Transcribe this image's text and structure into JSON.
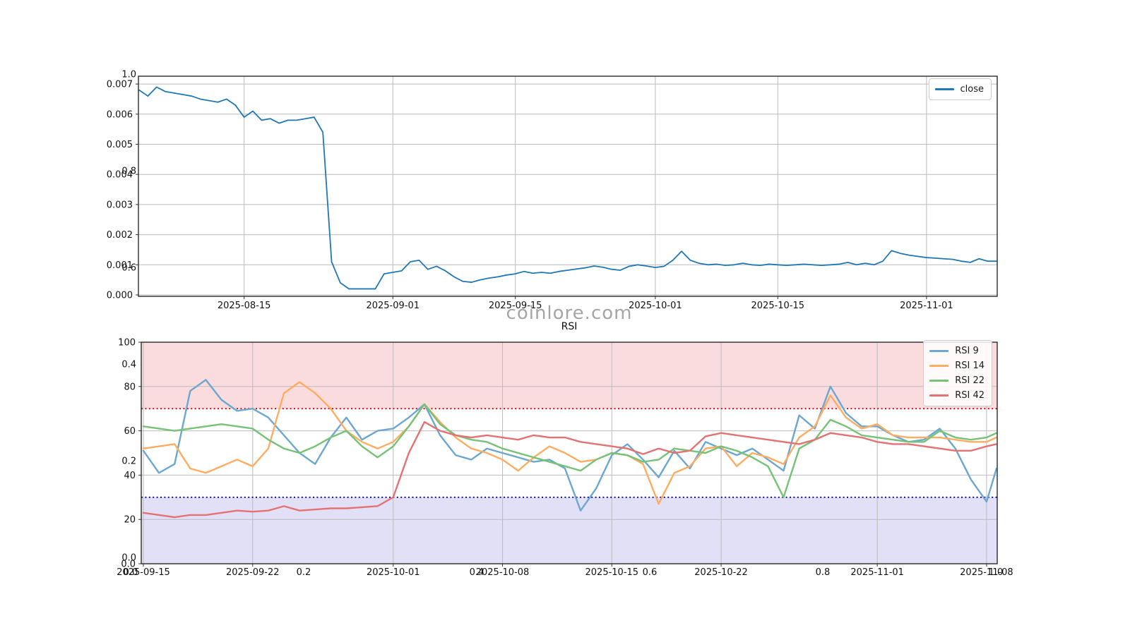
{
  "watermark": "coinlore.com",
  "rsi_title": "RSI",
  "stray_axis_labels": {
    "x": [
      "0.0",
      "0.2",
      "0.4",
      "0.6",
      "0.8",
      "1.0"
    ],
    "y": [
      "1.0",
      "0.8",
      "0.6",
      "0.4",
      "0.2",
      "0.0"
    ]
  },
  "chart_data": [
    {
      "type": "line",
      "name": "price",
      "start_date": "2025-08-03",
      "freq": "daily",
      "ylim": [
        0,
        0.00726
      ],
      "yticklabels": [
        "0.007",
        "0.006",
        "0.005",
        "0.004",
        "0.003",
        "0.002",
        "0.001",
        "0.000"
      ],
      "xticklabels": [
        "2025-08-15",
        "2025-09-01",
        "2025-09-15",
        "2025-10-01",
        "2025-10-15",
        "2025-11-01"
      ],
      "xtick_day_offsets": [
        12,
        29,
        43,
        59,
        73,
        90
      ],
      "grid": true,
      "legend_position": "upper right",
      "series": [
        {
          "name": "close",
          "color": "#1f77b4",
          "values": [
            0.0068,
            0.0066,
            0.0069,
            0.00675,
            0.0067,
            0.00665,
            0.0066,
            0.0065,
            0.00645,
            0.0064,
            0.0065,
            0.0063,
            0.0059,
            0.0061,
            0.0058,
            0.00585,
            0.0057,
            0.0058,
            0.0058,
            0.00585,
            0.0059,
            0.0054,
            0.0011,
            0.0004,
            0.0002,
            0.0002,
            0.0002,
            0.0002,
            0.0007,
            0.00075,
            0.0008,
            0.0011,
            0.00115,
            0.00085,
            0.00095,
            0.0008,
            0.0006,
            0.00045,
            0.00042,
            0.0005,
            0.00056,
            0.0006,
            0.00066,
            0.0007,
            0.00078,
            0.00072,
            0.00075,
            0.00072,
            0.00078,
            0.00082,
            0.00086,
            0.0009,
            0.00096,
            0.00092,
            0.00085,
            0.00082,
            0.00095,
            0.001,
            0.00096,
            0.00091,
            0.00095,
            0.00115,
            0.00145,
            0.00115,
            0.00105,
            0.001,
            0.00102,
            0.00098,
            0.001,
            0.00105,
            0.001,
            0.00098,
            0.00102,
            0.001,
            0.00098,
            0.001,
            0.00102,
            0.001,
            0.00098,
            0.001,
            0.00102,
            0.00108,
            0.001,
            0.00105,
            0.001,
            0.00112,
            0.00147,
            0.00138,
            0.00132,
            0.00128,
            0.00124,
            0.00122,
            0.0012,
            0.00118,
            0.00112,
            0.00108,
            0.0012,
            0.00112,
            0.00112
          ]
        }
      ]
    },
    {
      "type": "line",
      "name": "RSI",
      "start_date": "2025-09-15",
      "freq": "daily",
      "ylim": [
        0,
        100
      ],
      "yticklabels": [
        "100",
        "80",
        "60",
        "40",
        "20",
        "0.0"
      ],
      "ytick_values": [
        100,
        80,
        60,
        40,
        20,
        0
      ],
      "xticklabels": [
        "2025-09-15",
        "2025-09-22",
        "2025-10-01",
        "2025-10-08",
        "2025-10-15",
        "2025-10-22",
        "2025-11-01",
        "2025-11-08"
      ],
      "xtick_day_offsets": [
        0,
        7,
        16,
        23,
        30,
        37,
        47,
        54
      ],
      "grid": true,
      "overbought_level": 70,
      "oversold_level": 30,
      "band_colors": {
        "overbought": "#fbdcde",
        "oversold": "#e2e0f6"
      },
      "dotted_line_colors": {
        "overbought": "#d40000",
        "oversold": "#0000a0"
      },
      "legend_position": "upper right",
      "series": [
        {
          "name": "RSI 9",
          "color": "#6ba7ce",
          "values": [
            51,
            41,
            45,
            78,
            83,
            74,
            69,
            70,
            66,
            58,
            50,
            45,
            57,
            66,
            56,
            60,
            61,
            66,
            72,
            58,
            49,
            47,
            52,
            50,
            48,
            46,
            47,
            43,
            24,
            34,
            49,
            54,
            47,
            39,
            51,
            43,
            55,
            52,
            49,
            52,
            47,
            42,
            67,
            61,
            80,
            68,
            62,
            62,
            58,
            55,
            56,
            61,
            52,
            38,
            28,
            43
          ]
        },
        {
          "name": "RSI 14",
          "color": "#ffac62",
          "values": [
            52,
            53,
            54,
            43,
            41,
            44,
            47,
            44,
            52,
            77,
            82,
            77,
            70,
            60,
            55,
            52,
            55,
            62,
            72,
            64,
            57,
            52,
            50,
            47,
            42,
            48,
            53,
            50,
            46,
            47,
            50,
            49,
            45,
            27,
            41,
            44,
            52,
            53,
            44,
            50,
            48,
            45,
            57,
            62,
            76,
            66,
            61,
            63,
            58,
            57,
            57,
            57,
            56,
            55,
            55,
            57
          ]
        },
        {
          "name": "RSI 22",
          "color": "#76c276",
          "values": [
            62,
            61,
            60,
            61,
            62,
            63,
            62,
            61,
            56,
            52,
            50,
            53,
            57,
            60,
            53,
            48,
            53,
            62,
            72,
            63,
            58,
            56,
            55,
            52,
            50,
            48,
            46,
            44,
            42,
            47,
            50,
            49,
            46,
            47,
            52,
            51,
            50,
            53,
            51,
            48,
            44,
            30,
            52,
            56,
            65,
            62,
            58,
            57,
            56,
            55,
            55,
            60,
            57,
            56,
            57,
            59
          ]
        },
        {
          "name": "RSI 42",
          "color": "#e47273",
          "values": [
            23,
            22,
            21,
            22,
            22,
            23,
            24,
            23.5,
            24,
            26,
            24,
            24.5,
            25,
            25,
            25.5,
            26,
            30,
            50,
            64,
            60,
            58,
            57,
            58,
            57,
            56,
            58,
            57,
            57,
            55,
            54,
            53,
            52,
            49.5,
            52,
            50,
            51,
            57.5,
            59,
            58,
            57,
            56,
            55,
            54,
            56,
            59,
            58,
            57,
            55,
            54,
            54,
            53,
            52,
            51,
            51,
            53,
            54
          ]
        }
      ]
    }
  ]
}
